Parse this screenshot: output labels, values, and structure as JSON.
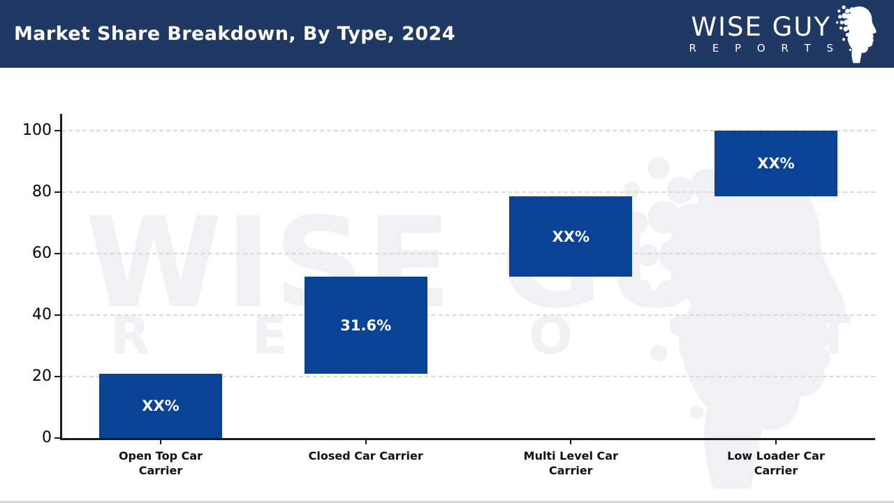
{
  "header": {
    "title": "Market Share Breakdown, By Type, 2024",
    "logo": {
      "line1": "WISE GUY",
      "line2": "R E P O R T S"
    }
  },
  "watermark": {
    "line1": "WISE GUY",
    "line2": "R E P O R T S"
  },
  "colors": {
    "header_bg": "#1f3864",
    "bar": "#0a4296",
    "grid": "#dadada",
    "axis": "#1a1a1a",
    "bar_label_text": "#ffffff",
    "watermark": "#f1f1f3"
  },
  "chart_data": {
    "type": "bar",
    "subtype": "waterfall",
    "title": "Market Share Breakdown, By Type, 2024",
    "categories": [
      "Open Top Car\nCarrier",
      "Closed Car Carrier",
      "Multi Level Car\nCarrier",
      "Low Loader Car\nCarrier"
    ],
    "segments": [
      {
        "category": "Open Top Car Carrier",
        "start": 0,
        "end": 20.8,
        "label": "XX%"
      },
      {
        "category": "Closed Car Carrier",
        "start": 20.8,
        "end": 52.4,
        "label": "31.6%",
        "value": 31.6
      },
      {
        "category": "Multi Level Car Carrier",
        "start": 52.4,
        "end": 78.6,
        "label": "XX%"
      },
      {
        "category": "Low Loader Car Carrier",
        "start": 78.6,
        "end": 100,
        "label": "XX%"
      }
    ],
    "y_ticks": [
      0,
      20,
      40,
      60,
      80,
      100
    ],
    "ylim": [
      0,
      105
    ],
    "xlabel": "",
    "ylabel": "",
    "grid": "horizontal-dashed",
    "legend": "none"
  }
}
